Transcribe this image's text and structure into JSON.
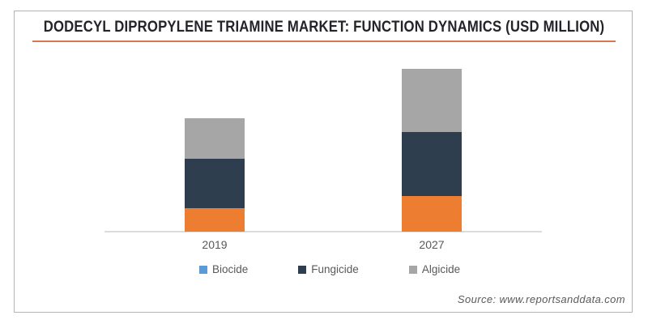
{
  "chart_data": {
    "type": "bar",
    "stacked": true,
    "title": "DODECYL DIPROPYLENE TRIAMINE MARKET: FUNCTION DYNAMICS (USD MILLION)",
    "categories": [
      "2019",
      "2027"
    ],
    "series": [
      {
        "name": "Biocide",
        "values": [
          29,
          44
        ],
        "bar_color": "#ED7D31",
        "legend_color": "#5B9BD5"
      },
      {
        "name": "Fungicide",
        "values": [
          61,
          79
        ],
        "bar_color": "#2F3E4E",
        "legend_color": "#2F3E4E"
      },
      {
        "name": "Algicide",
        "values": [
          50,
          78
        ],
        "bar_color": "#A6A6A6",
        "legend_color": "#A6A6A6"
      }
    ],
    "xlabel": "",
    "ylabel": "",
    "ylim": [
      0,
      220
    ],
    "grid": false,
    "legend_position": "bottom"
  },
  "footer": {
    "source": "Source: www.reportsanddata.com"
  },
  "colors": {
    "title_text": "#23232A",
    "accent_rule": "#D7794F",
    "axis_line": "#DCDCDC",
    "frame_border": "#B3B3B3",
    "muted_text": "#595959"
  }
}
